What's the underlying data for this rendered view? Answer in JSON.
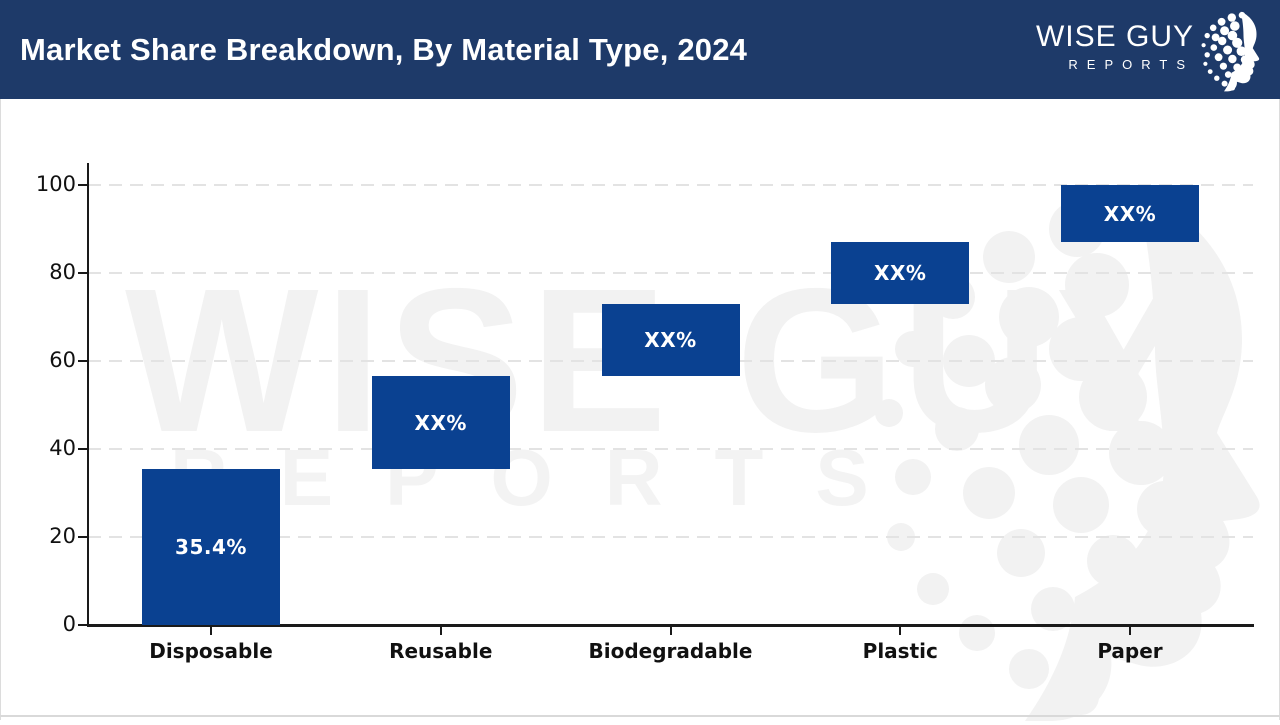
{
  "header": {
    "title": "Market Share Breakdown, By Material Type, 2024",
    "logo": {
      "name": "WISE GUY",
      "sub": "REPORTS"
    }
  },
  "watermark": {
    "line1": "WISE GUY",
    "line2": "REPORTS"
  },
  "chart_data": {
    "type": "bar",
    "subtype": "waterfall",
    "title": "Market Share Breakdown, By Material Type, 2024",
    "xlabel": "",
    "ylabel": "",
    "ylim": [
      0,
      100
    ],
    "yticks": [
      0,
      20,
      40,
      60,
      80,
      100
    ],
    "grid": "horizontal-dashed",
    "legend": "none",
    "categories": [
      "Disposable",
      "Reusable",
      "Biodegradable",
      "Plastic",
      "Paper"
    ],
    "segments": [
      {
        "category": "Disposable",
        "start": 0,
        "end": 35.4,
        "label": "35.4%"
      },
      {
        "category": "Reusable",
        "start": 35.4,
        "end": 56.6,
        "label": "XX%"
      },
      {
        "category": "Biodegradable",
        "start": 56.6,
        "end": 73.0,
        "label": "XX%"
      },
      {
        "category": "Plastic",
        "start": 73.0,
        "end": 87.0,
        "label": "XX%"
      },
      {
        "category": "Paper",
        "start": 87.0,
        "end": 100.0,
        "label": "XX%"
      }
    ],
    "colors": {
      "bar": "#0a4191",
      "bar_label": "#ffffff",
      "header_bg": "#1e3a69",
      "grid": "#e3e3e3",
      "axis": "#1a1a1a",
      "watermark": "#f2f2f2"
    }
  }
}
